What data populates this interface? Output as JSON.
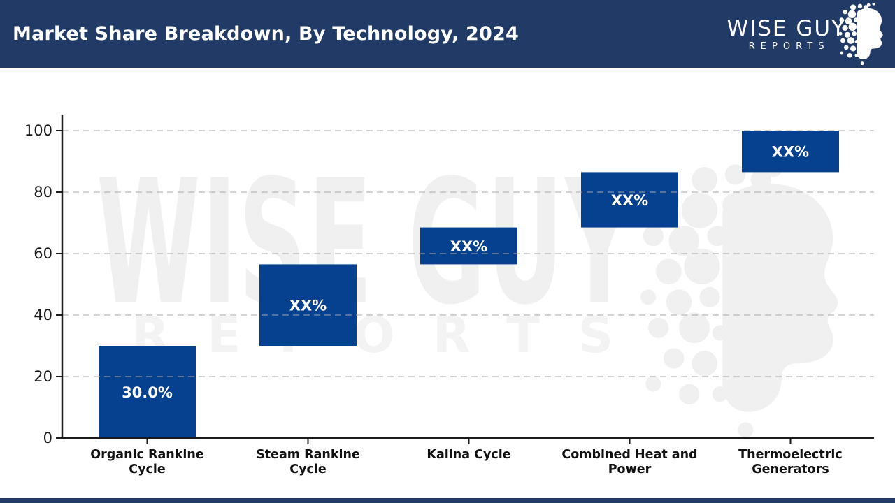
{
  "header": {
    "title": "Market Share Breakdown, By Technology, 2024",
    "logo": {
      "wordmark": "WISE GUY",
      "subtext": "REPORTS"
    }
  },
  "watermark": {
    "wordmark": "WISE GUY",
    "subtext": "REPORTS"
  },
  "chart_data": {
    "type": "bar",
    "subtype": "stacked-waterfall-floating-segments",
    "title": "Market Share Breakdown, By Technology, 2024",
    "categories": [
      "Organic Rankine Cycle",
      "Steam Rankine Cycle",
      "Kalina Cycle",
      "Combined Heat and Power",
      "Thermoelectric Generators"
    ],
    "series": [
      {
        "name": "Market share (%)",
        "segments": [
          {
            "category": "Organic Rankine Cycle",
            "start": 0,
            "end": 30,
            "label": "30.0%"
          },
          {
            "category": "Steam Rankine Cycle",
            "start": 30,
            "end": 56.5,
            "label": "XX%"
          },
          {
            "category": "Kalina Cycle",
            "start": 56.5,
            "end": 68.5,
            "label": "XX%"
          },
          {
            "category": "Combined Heat and Power",
            "start": 68.5,
            "end": 86.5,
            "label": "XX%"
          },
          {
            "category": "Thermoelectric Generators",
            "start": 86.5,
            "end": 100,
            "label": "XX%"
          }
        ]
      }
    ],
    "ylim": [
      0,
      100
    ],
    "yticks": [
      0,
      20,
      40,
      60,
      80,
      100
    ],
    "xlabel": "",
    "ylabel": "",
    "grid": "horizontal-dashed",
    "legend": "none",
    "bar_color": "#05418F",
    "bar_label_color": "#FFFFFF"
  },
  "colors": {
    "header_bg": "#213A66",
    "footer_bg": "#213A66",
    "axis": "#1A1A1A",
    "grid": "#D9D9D9",
    "watermark": "#EFEFEF"
  }
}
